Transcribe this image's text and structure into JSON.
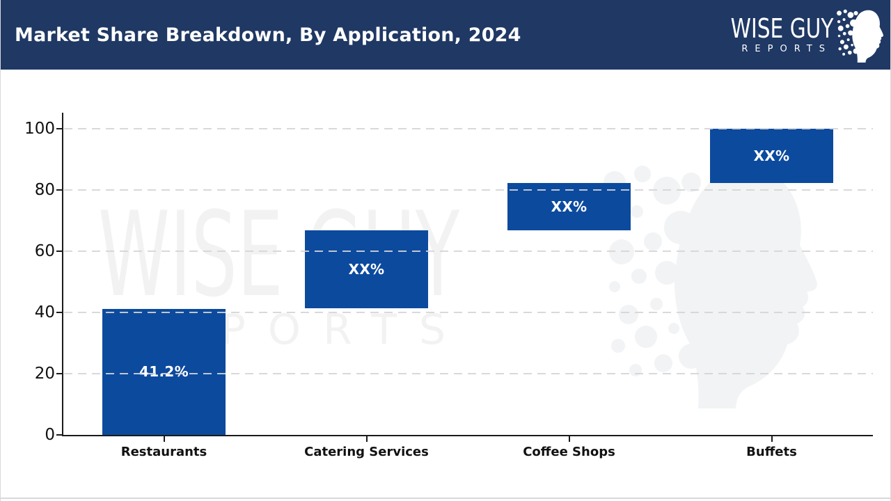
{
  "header": {
    "title": "Market Share Breakdown, By Application, 2024",
    "logo": {
      "line1": "WISE GUY",
      "line2": "REPORTS"
    }
  },
  "watermark": {
    "line1": "WISE GUY",
    "line2": "REPORTS"
  },
  "colors": {
    "header_bg": "#1f3864",
    "bar": "#0c4a9e",
    "bar_label": "#ffffff",
    "grid": "#d5d5d5",
    "axis": "#1a1a1a",
    "watermark": "#f2f2f2",
    "page_border": "#d9d9d9"
  },
  "chart_data": {
    "type": "bar",
    "subtype": "waterfall",
    "title": "Market Share Breakdown, By Application, 2024",
    "categories": [
      "Restaurants",
      "Catering Services",
      "Coffee Shops",
      "Buffets"
    ],
    "segments": [
      {
        "category": "Restaurants",
        "start": 0,
        "end": 41.2,
        "label": "41.2%"
      },
      {
        "category": "Catering Services",
        "start": 41.2,
        "end": 66.7,
        "label": "XX%"
      },
      {
        "category": "Coffee Shops",
        "start": 66.7,
        "end": 82.2,
        "label": "XX%"
      },
      {
        "category": "Buffets",
        "start": 82.2,
        "end": 100,
        "label": "XX%"
      }
    ],
    "xlabel": "",
    "ylabel": "",
    "ylim": [
      0,
      100
    ],
    "yticks": [
      0,
      20,
      40,
      60,
      80,
      100
    ],
    "grid": "horizontal-dashed",
    "grid_above_bars": true,
    "legend": "none",
    "bar_color": "#0c4a9e",
    "value_label_color": "#ffffff"
  }
}
